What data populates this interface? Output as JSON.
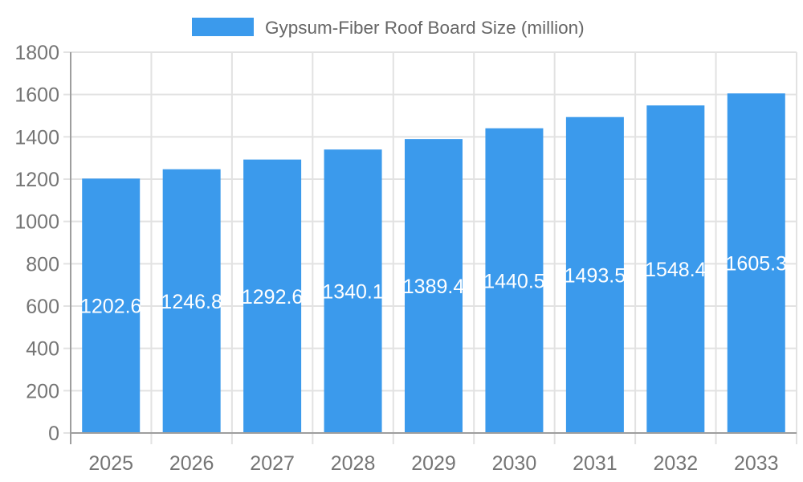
{
  "legend": {
    "label": "Gypsum-Fiber Roof Board Size (million)"
  },
  "colors": {
    "bar": "#3b9aec",
    "grid": "#e2e2e2",
    "axis": "#9e9e9e",
    "tick_label": "#757575",
    "value_label": "#ffffff",
    "legend_text": "#666666",
    "background": "#ffffff"
  },
  "chart_data": {
    "type": "bar",
    "title": "Gypsum-Fiber Roof Board Size (million)",
    "series": [
      {
        "name": "Gypsum-Fiber Roof Board Size (million)",
        "values": [
          1202.6,
          1246.8,
          1292.6,
          1340.1,
          1389.4,
          1440.5,
          1493.5,
          1548.4,
          1605.3
        ]
      }
    ],
    "categories": [
      "2025",
      "2026",
      "2027",
      "2028",
      "2029",
      "2030",
      "2031",
      "2032",
      "2033"
    ],
    "value_labels": [
      "1202.6",
      "1246.8",
      "1292.6",
      "1340.1",
      "1389.4",
      "1440.5",
      "1493.5",
      "1548.4",
      "1605.3"
    ],
    "xlabel": "",
    "ylabel": "",
    "ylim": [
      0,
      1800
    ],
    "ytick_step": 200,
    "yticks": [
      "0",
      "200",
      "400",
      "600",
      "800",
      "1000",
      "1200",
      "1400",
      "1600",
      "1800"
    ],
    "grid": true,
    "legend_position": "top-center",
    "value_label_position": "inside-center"
  }
}
